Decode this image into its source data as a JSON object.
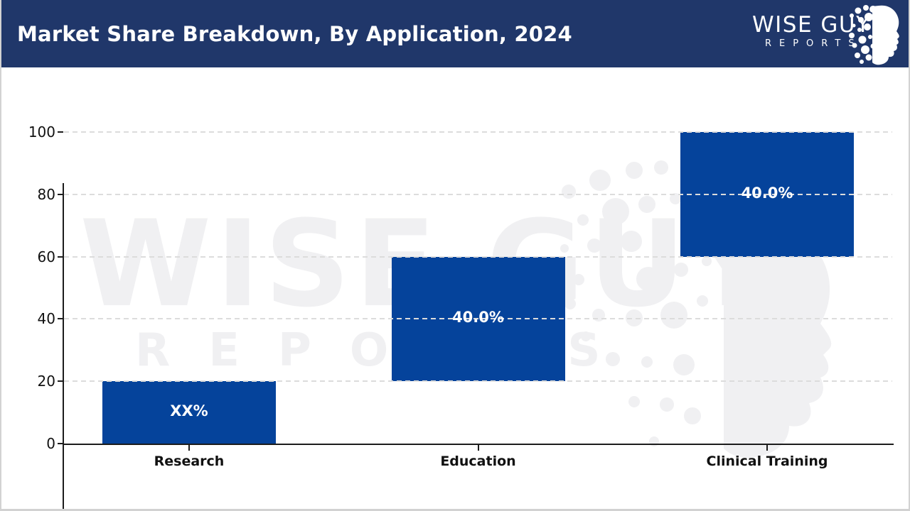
{
  "header": {
    "title": "Market Share Breakdown, By Application, 2024",
    "logo": {
      "line1": "WISE GUY",
      "line2": "REPORTS"
    }
  },
  "watermark": {
    "line1": "WISE GUY",
    "line2": "REPORTS"
  },
  "chart_data": {
    "type": "bar",
    "subtype": "waterfall",
    "title": "Market Share Breakdown, By Application, 2024",
    "categories": [
      "Research",
      "Education",
      "Clinical Training"
    ],
    "segments": [
      {
        "category": "Research",
        "start": 0,
        "end": 20,
        "label": "XX%"
      },
      {
        "category": "Education",
        "start": 20,
        "end": 60,
        "label": "40.0%"
      },
      {
        "category": "Clinical Training",
        "start": 60,
        "end": 100,
        "label": "40.0%"
      }
    ],
    "ylim": [
      0,
      100
    ],
    "yticks": [
      0,
      20,
      40,
      60,
      80,
      100
    ],
    "grid": "dashed-horizontal",
    "legend": "none",
    "xlabel": "",
    "ylabel": ""
  },
  "colors": {
    "header_bg": "#20376a",
    "bar_fill": "#05439b",
    "grid_line": "#dcdcdc",
    "axis_line": "#1c1c1c",
    "tick_text": "#111111",
    "bar_label_text": "#ffffff",
    "watermark": "#f0f0f2",
    "frame_border": "#d2d2d2"
  }
}
